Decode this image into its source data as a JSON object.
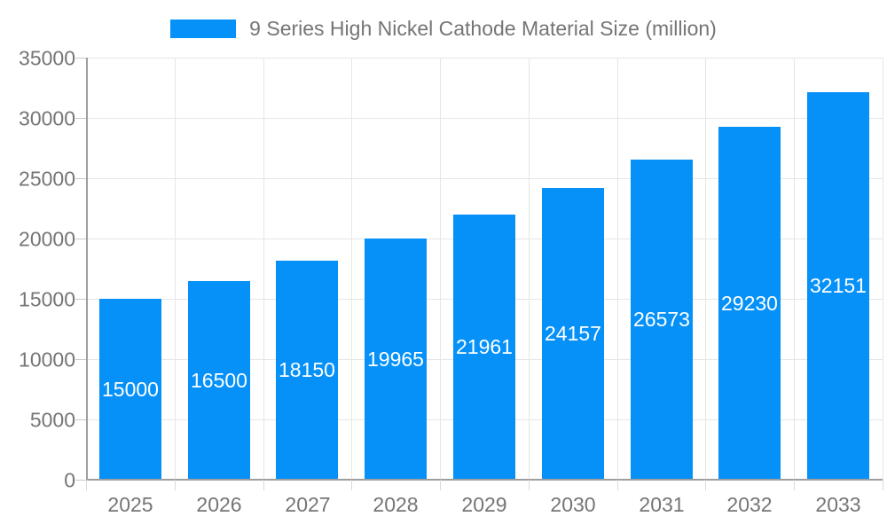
{
  "chart_data": {
    "type": "bar",
    "title": "9 Series High Nickel Cathode Material Size (million)",
    "legend": {
      "position": "top",
      "entries": [
        "9 Series High Nickel Cathode Material Size (million)"
      ]
    },
    "categories": [
      "2025",
      "2026",
      "2027",
      "2028",
      "2029",
      "2030",
      "2031",
      "2032",
      "2033"
    ],
    "series": [
      {
        "name": "9 Series High Nickel Cathode Material Size (million)",
        "values": [
          15000,
          16500,
          18150,
          19965,
          21961,
          24157,
          26573,
          29230,
          32151
        ]
      }
    ],
    "value_labels_shown": true,
    "xlabel": "",
    "ylabel": "",
    "ylim": [
      0,
      35000
    ],
    "ytick_step": 5000,
    "yticks": [
      0,
      5000,
      10000,
      15000,
      20000,
      25000,
      30000,
      35000
    ],
    "grid": "both",
    "colors": {
      "bar": "#0591f8",
      "value_label": "#ffffff",
      "axis_text": "#757575",
      "grid_line": "#e6e6e6",
      "axis_line": "#9e9e9e"
    }
  }
}
